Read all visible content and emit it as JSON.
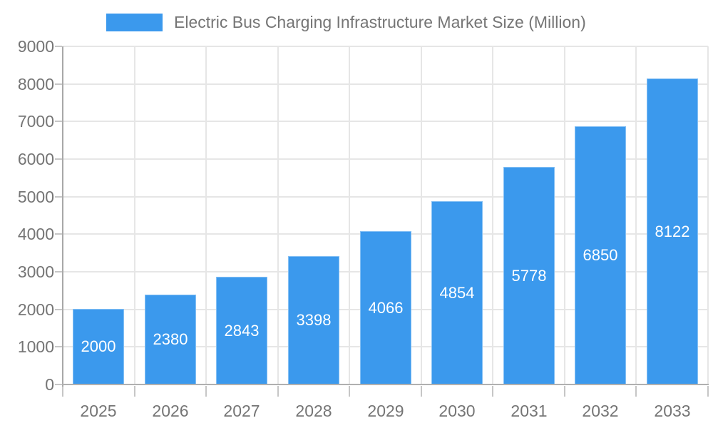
{
  "legend": {
    "label": "Electric Bus Charging Infrastructure Market Size (Million)"
  },
  "chart_data": {
    "type": "bar",
    "title": "Electric Bus Charging Infrastructure Market Size (Million)",
    "categories": [
      "2025",
      "2026",
      "2027",
      "2028",
      "2029",
      "2030",
      "2031",
      "2032",
      "2033"
    ],
    "series": [
      {
        "name": "Electric Bus Charging Infrastructure Market Size (Million)",
        "values": [
          2000,
          2380,
          2843,
          3398,
          4066,
          4854,
          5778,
          6850,
          8122
        ]
      }
    ],
    "xlabel": "",
    "ylabel": "",
    "ylim": [
      0,
      9000
    ],
    "ytick_step": 1000,
    "ytick_labels": [
      "0",
      "1000",
      "2000",
      "3000",
      "4000",
      "5000",
      "6000",
      "7000",
      "8000",
      "9000"
    ],
    "grid": true,
    "legend_position": "top",
    "data_labels_position": "inside-center"
  },
  "style": {
    "bar_color": "#3b99ed",
    "grid_color": "#e6e6e6",
    "axis_line_color": "#b0b0b0",
    "tick_color": "#c6c6c6",
    "text_color": "#757575",
    "bar_label_color": "#ffffff",
    "background": "#ffffff"
  }
}
